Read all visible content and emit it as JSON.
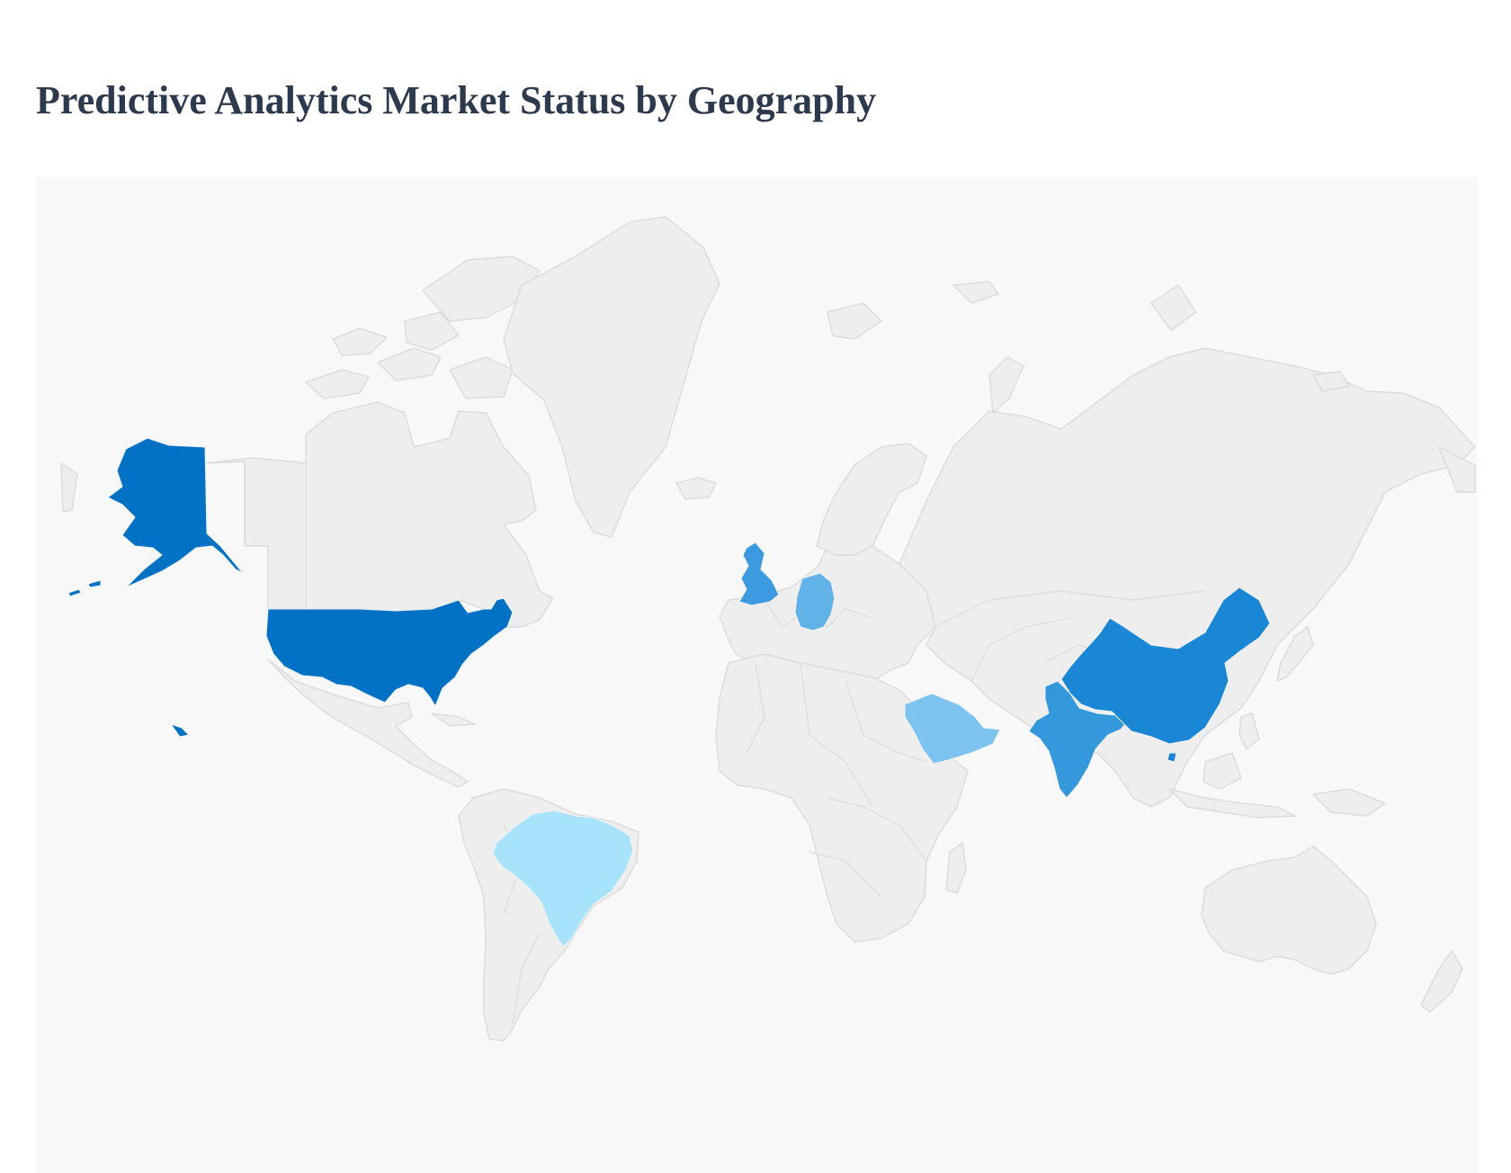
{
  "title": "Predictive Analytics Market Status by Geography",
  "map": {
    "type": "choropleth",
    "projection": "world",
    "background_color": "#f8f8f8",
    "default_country_color": "#eeeeee",
    "country_border_color": "#dcdcdc",
    "legend": "none",
    "highlighted_countries": [
      {
        "country": "United States of America",
        "color": "#0072c6"
      },
      {
        "country": "China",
        "color": "#1a87d6"
      },
      {
        "country": "India",
        "color": "#3498dd"
      },
      {
        "country": "United Kingdom",
        "color": "#3b9ae0"
      },
      {
        "country": "Germany",
        "color": "#62b2ea"
      },
      {
        "country": "Saudi Arabia",
        "color": "#7cc3f0"
      },
      {
        "country": "Brazil",
        "color": "#a8e3fc"
      }
    ]
  }
}
